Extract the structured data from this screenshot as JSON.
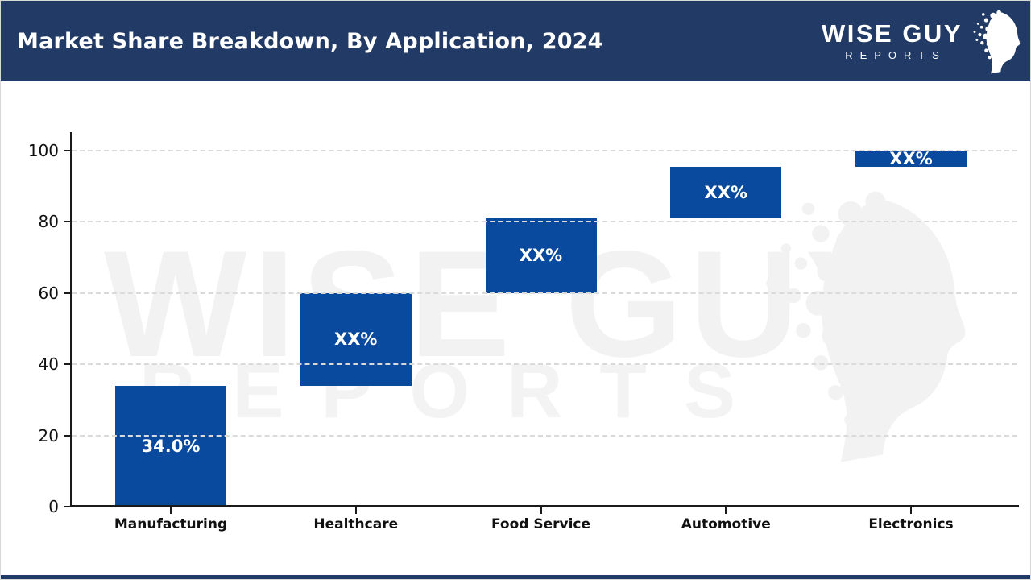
{
  "header": {
    "title": "Market Share Breakdown, By Application, 2024",
    "logo": {
      "wordmark": "WISE GUY",
      "subtext": "REPORTS"
    }
  },
  "watermark": {
    "line1": "WISE GUY",
    "line2": "REPORTS"
  },
  "chart_data": {
    "type": "bar",
    "subtype": "waterfall",
    "title": "Market Share Breakdown, By Application, 2024",
    "categories": [
      "Manufacturing",
      "Healthcare",
      "Food Service",
      "Automotive",
      "Electronics"
    ],
    "segments": [
      {
        "category": "Manufacturing",
        "start": 0,
        "end": 34,
        "label": "34.0%"
      },
      {
        "category": "Healthcare",
        "start": 34,
        "end": 60,
        "label": "XX%"
      },
      {
        "category": "Food Service",
        "start": 60,
        "end": 81,
        "label": "XX%"
      },
      {
        "category": "Automotive",
        "start": 81,
        "end": 95.5,
        "label": "XX%"
      },
      {
        "category": "Electronics",
        "start": 95.5,
        "end": 100,
        "label": "XX%"
      }
    ],
    "xlabel": "",
    "ylabel": "",
    "ylim": [
      0,
      105
    ],
    "yticks": [
      0,
      20,
      40,
      60,
      80,
      100
    ],
    "grid": "horizontal dashed, drawn over bars",
    "legend": "none",
    "bar_color": "#0a4a9e",
    "bar_label_color": "#ffffff"
  },
  "colors": {
    "header_bg": "#213a66",
    "bar": "#0a4a9e",
    "grid": "#dadada",
    "axis": "#1a1a1a",
    "watermark": "#f2f2f2",
    "footer": "#213a66"
  }
}
